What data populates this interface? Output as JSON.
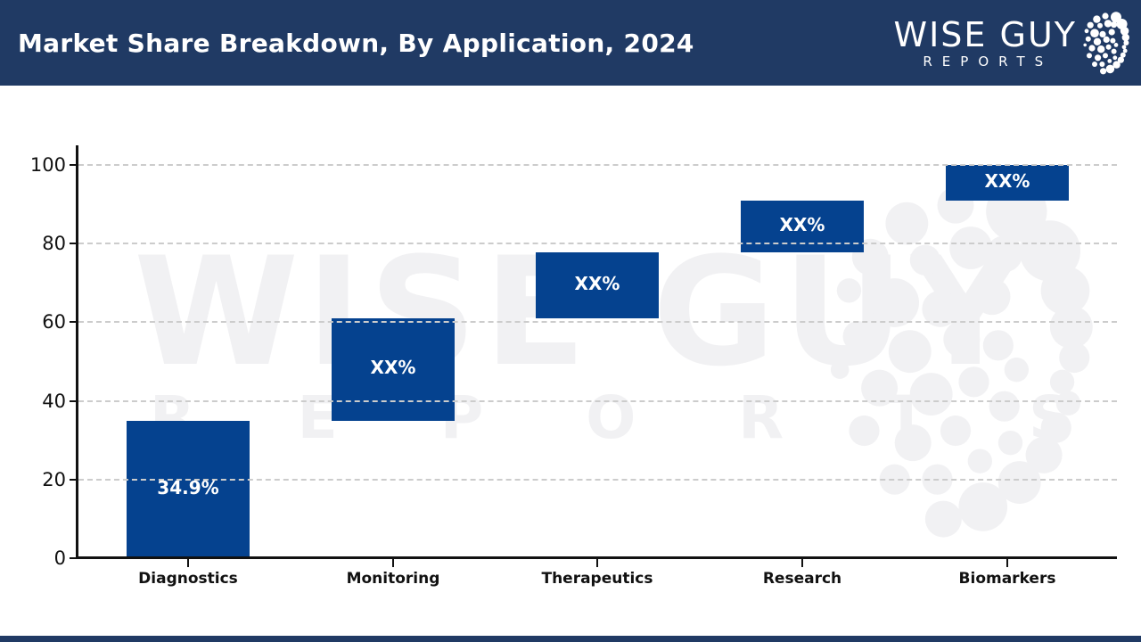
{
  "header": {
    "title": "Market Share Breakdown, By Application, 2024",
    "logo": {
      "wordmark": "WISE GUY",
      "subtext": "REPORTS",
      "icon": "face-profile-dots-icon"
    }
  },
  "watermark": {
    "wordmark": "WISE GUY",
    "subtext": "R E P O R T S",
    "icon": "face-profile-dots-icon"
  },
  "chart_data": {
    "type": "bar",
    "subtype": "waterfall",
    "title": "Market Share Breakdown, By Application, 2024",
    "categories": [
      "Diagnostics",
      "Monitoring",
      "Therapeutics",
      "Research",
      "Biomarkers"
    ],
    "segments": [
      {
        "category": "Diagnostics",
        "start": 0,
        "end": 34.9,
        "label": "34.9%"
      },
      {
        "category": "Monitoring",
        "start": 34.9,
        "end": 61.1,
        "label": "XX%"
      },
      {
        "category": "Therapeutics",
        "start": 61.1,
        "end": 77.7,
        "label": "XX%"
      },
      {
        "category": "Research",
        "start": 77.7,
        "end": 91.0,
        "label": "XX%"
      },
      {
        "category": "Biomarkers",
        "start": 91.0,
        "end": 100.0,
        "label": "XX%"
      }
    ],
    "xlabel": "",
    "ylabel": "",
    "ylim": [
      0,
      105
    ],
    "yticks": [
      0,
      20,
      40,
      60,
      80,
      100
    ],
    "grid": "horizontal-dashed",
    "legend": "none",
    "bar_color": "#05428f",
    "bar_label_color": "#ffffff"
  },
  "colors": {
    "header_bg": "#203a64",
    "footer_bg": "#203a64",
    "bar": "#05428f",
    "grid": "#cccccc",
    "axis": "#111111",
    "tick_text": "#111111",
    "watermark": "#f1f1f3"
  }
}
